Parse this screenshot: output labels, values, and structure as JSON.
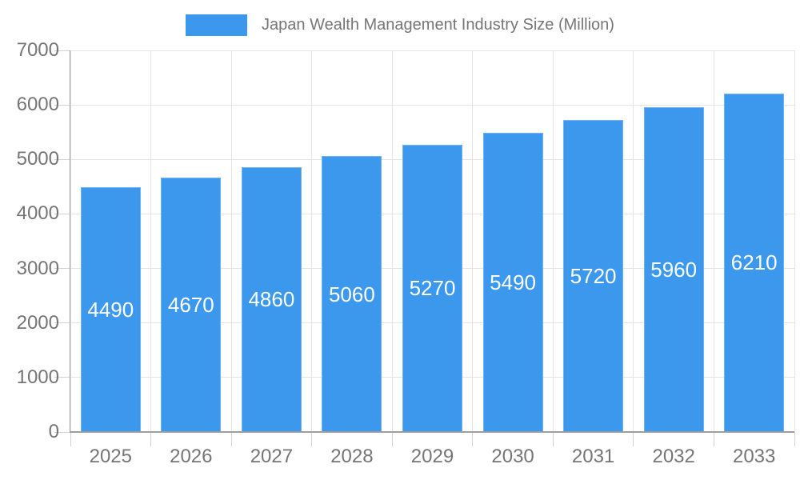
{
  "chart_data": {
    "type": "bar",
    "title": "Japan Wealth Management Industry Size (Million)",
    "legend_position": "top",
    "categories": [
      "2025",
      "2026",
      "2027",
      "2028",
      "2029",
      "2030",
      "2031",
      "2032",
      "2033"
    ],
    "series": [
      {
        "name": "Japan Wealth Management Industry Size (Million)",
        "values": [
          4490,
          4670,
          4860,
          5060,
          5270,
          5490,
          5720,
          5960,
          6210
        ]
      }
    ],
    "bar_value_labels": [
      "4490",
      "4670",
      "4860",
      "5060",
      "5270",
      "5490",
      "5720",
      "5960",
      "6210"
    ],
    "xlabel": "",
    "ylabel": "",
    "ylim": [
      0,
      7000
    ],
    "ytick_step": 1000,
    "ytick_labels": [
      "0",
      "1000",
      "2000",
      "3000",
      "4000",
      "5000",
      "6000",
      "7000"
    ],
    "grid": "on",
    "colors": {
      "bar_fill": "#3B98EC",
      "bar_stroke": "#6FB3F2",
      "bar_label_text": "#FFFFFF",
      "axis_text": "#757575",
      "legend_text": "#757575",
      "axis_line": "#9E9E9E",
      "gridline": "#E4E4E4",
      "tick": "#D2D2D2",
      "background": "#FFFFFF"
    }
  }
}
